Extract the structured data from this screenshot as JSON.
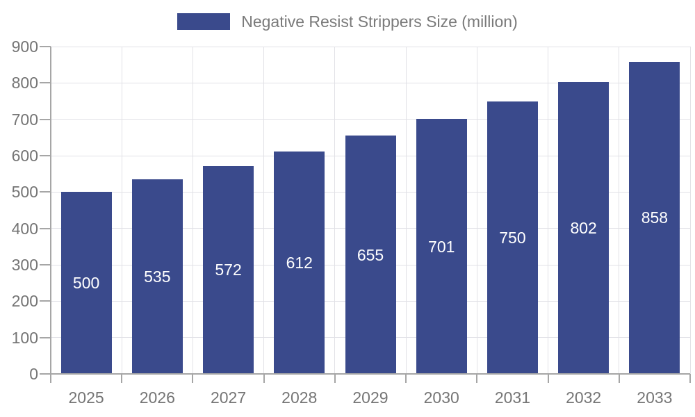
{
  "chart_data": {
    "type": "bar",
    "title": "Negative Resist Strippers Size (million)",
    "series": [
      {
        "name": "Negative Resist Strippers Size (million)",
        "values": [
          500,
          535,
          572,
          612,
          655,
          701,
          750,
          802,
          858
        ]
      }
    ],
    "categories": [
      "2025",
      "2026",
      "2027",
      "2028",
      "2029",
      "2030",
      "2031",
      "2032",
      "2033"
    ],
    "xlabel": "",
    "ylabel": "",
    "ylim": [
      0,
      900
    ],
    "yticks": [
      0,
      100,
      200,
      300,
      400,
      500,
      600,
      700,
      800,
      900
    ],
    "grid": "both",
    "legend_position": "top",
    "value_labels": "inside-center",
    "colors": {
      "bar": "#3A4A8C",
      "value_label": "#FFFFFF",
      "grid_line": "#E1E1E6",
      "axis_line": "#A6A6A6",
      "tick_label": "#757575",
      "legend_text": "#7A7A7A",
      "background": "#FFFFFF"
    }
  }
}
